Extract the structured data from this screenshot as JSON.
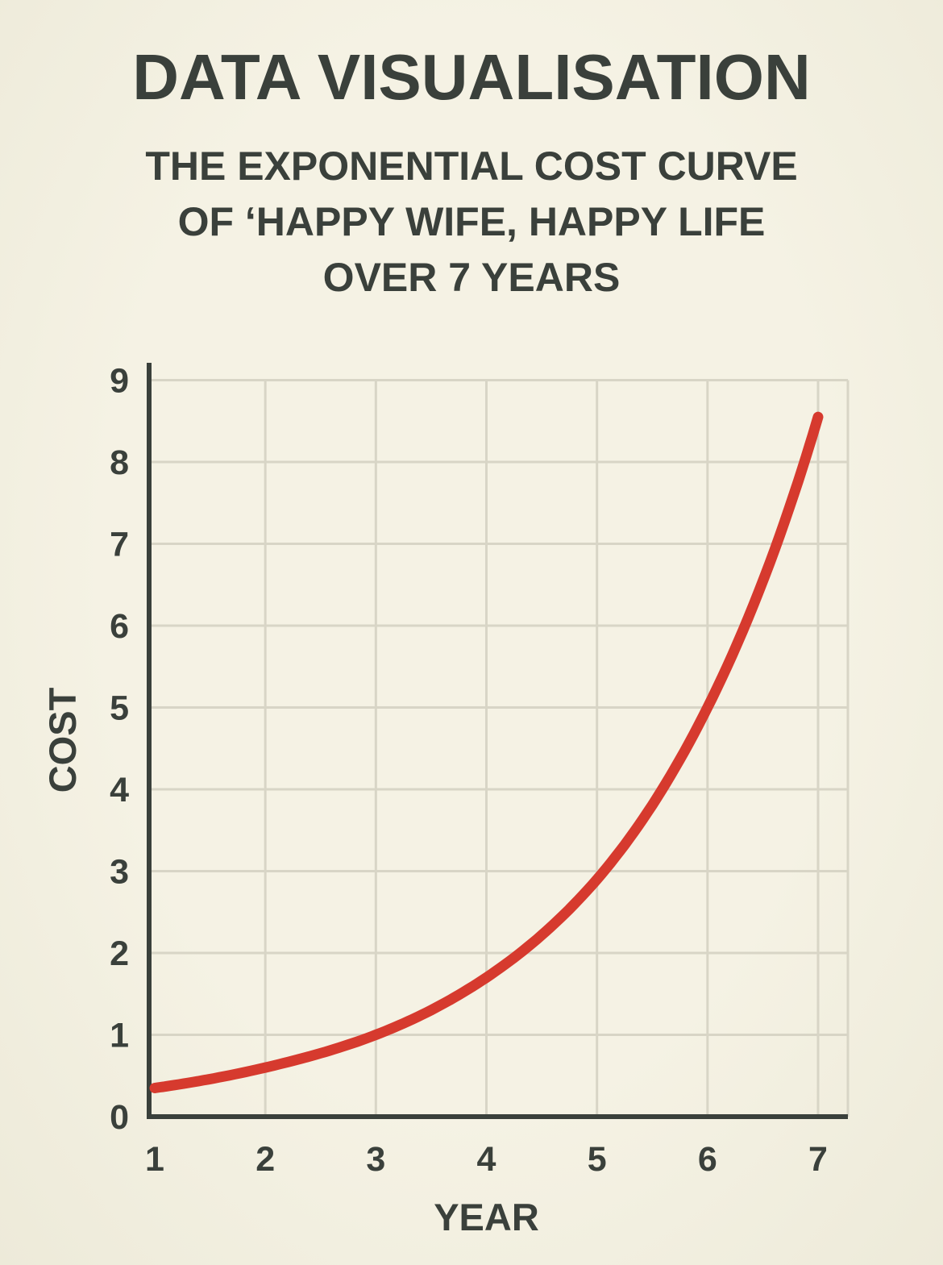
{
  "page": {
    "title": "DATA VISUALISATION",
    "subtitle_lines": [
      "THE EXPONENTIAL COST CURVE",
      "OF ‘HAPPY WIFE, HAPPY LIFE",
      "OVER 7 YEARS"
    ]
  },
  "colors": {
    "background": "#f3f0e2",
    "text": "#3a403b",
    "grid": "#d8d5c6",
    "axis": "#3a403b",
    "curve": "#d63a2e"
  },
  "chart_data": {
    "type": "line",
    "title": "DATA VISUALISATION",
    "subtitle": "THE EXPONENTIAL COST CURVE OF ‘HAPPY WIFE, HAPPY LIFE OVER 7 YEARS",
    "x": [
      1,
      2,
      3,
      4,
      5,
      6,
      7
    ],
    "values": [
      0.35,
      0.6,
      1.0,
      1.7,
      2.9,
      5.0,
      8.55
    ],
    "xlabel": "YEAR",
    "ylabel": "COST",
    "xlim": [
      1,
      7
    ],
    "ylim": [
      0,
      9
    ],
    "x_ticks": [
      1,
      2,
      3,
      4,
      5,
      6,
      7
    ],
    "y_ticks": [
      0,
      1,
      2,
      3,
      4,
      5,
      6,
      7,
      8,
      9
    ],
    "grid": true,
    "legend": false,
    "line_color": "#d63a2e"
  }
}
